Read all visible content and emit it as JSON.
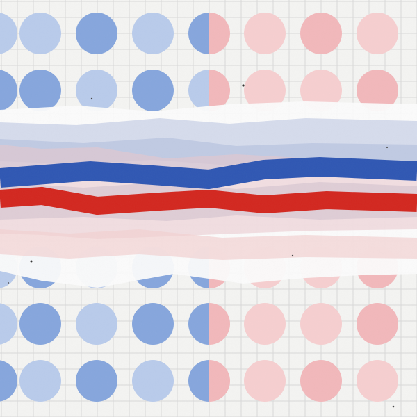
{
  "illustration": {
    "palette": {
      "background": "#f4f4f2",
      "grid": "#d9d9d9",
      "blue": "#2f57b3",
      "red": "#d3271f",
      "dot_blue_strong": "#86a6dd",
      "dot_blue_light": "#b9cbeb",
      "dot_red_light": "#f6cfd0",
      "dot_red_strong": "#f2b8bb",
      "band_blue": "#b6c3df",
      "band_red": "#efc6c6",
      "band_white": "#fbfbfb"
    }
  }
}
